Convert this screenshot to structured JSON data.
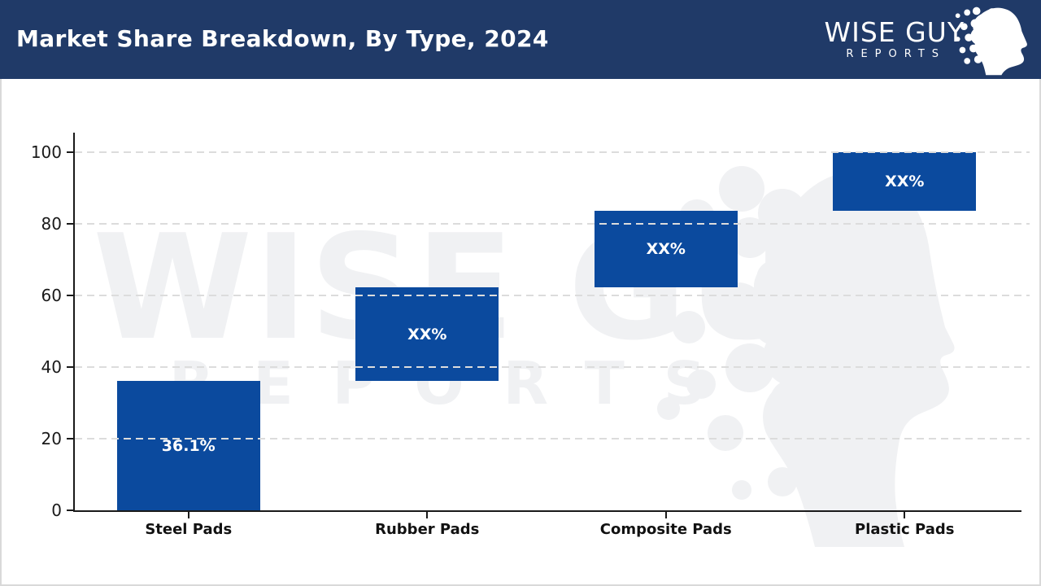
{
  "header": {
    "title": "Market Share Breakdown, By Type, 2024",
    "background": "#203a68",
    "logo": {
      "wordmark": "WISE GUY",
      "subtext": "REPORTS"
    }
  },
  "watermark": {
    "line1": "WISE GUY",
    "line2": "REPORTS"
  },
  "chart_data": {
    "type": "bar",
    "subtype": "waterfall",
    "title": "Market Share Breakdown, By Type, 2024",
    "categories": [
      "Steel Pads",
      "Rubber Pads",
      "Composite Pads",
      "Plastic Pads"
    ],
    "segments": [
      {
        "category": "Steel Pads",
        "start": 0,
        "end": 36.1,
        "label": "36.1%"
      },
      {
        "category": "Rubber Pads",
        "start": 36.1,
        "end": 62.3,
        "label": "XX%"
      },
      {
        "category": "Composite Pads",
        "start": 62.3,
        "end": 83.7,
        "label": "XX%"
      },
      {
        "category": "Plastic Pads",
        "start": 83.7,
        "end": 100,
        "label": "XX%"
      }
    ],
    "yticks": [
      0,
      20,
      40,
      60,
      80,
      100
    ],
    "ylim": [
      0,
      105
    ],
    "xlabel": "",
    "ylabel": "",
    "grid": {
      "axis": "y",
      "style": "dashed",
      "color": "#dcdcdc",
      "above_bars": true
    },
    "bar_color": "#0b4a9e",
    "bar_label_color": "#ffffff",
    "axis_color": "#1a1a1a",
    "legend": "none"
  }
}
